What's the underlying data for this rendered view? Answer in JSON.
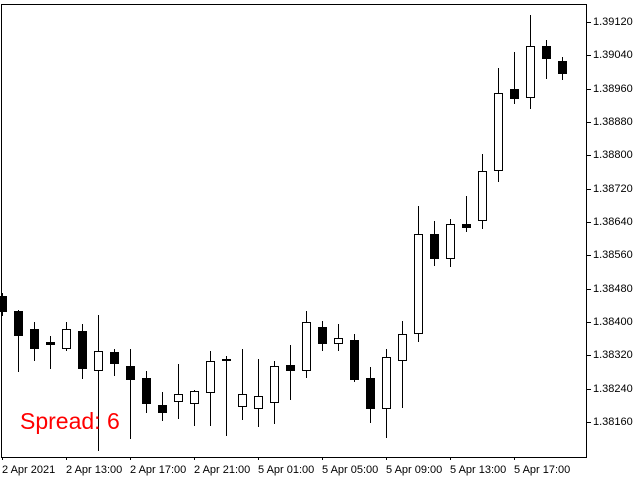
{
  "spread_label": {
    "text": "Spread: 6",
    "color": "#ff0000"
  },
  "colors": {
    "background": "#ffffff",
    "frame": "#000000",
    "bull_body": "#ffffff",
    "bear_body": "#000000",
    "outline": "#000000",
    "text": "#000000"
  },
  "chart_data": {
    "type": "candlestick",
    "title": "",
    "xlabel": "",
    "ylabel": "",
    "grid": false,
    "legend": null,
    "timeframe": "H1",
    "ylim": [
      1.38076,
      1.39163
    ],
    "y_axis": {
      "side": "right",
      "tick_labels": [
        "1.39120",
        "1.39040",
        "1.38960",
        "1.38880",
        "1.38800",
        "1.38720",
        "1.38640",
        "1.38560",
        "1.38480",
        "1.38400",
        "1.38320",
        "1.38240",
        "1.38160"
      ]
    },
    "x_axis": {
      "labels": [
        {
          "text": "2 Apr 2021",
          "candle_index": 0
        },
        {
          "text": "2 Apr 13:00",
          "candle_index": 4
        },
        {
          "text": "2 Apr 17:00",
          "candle_index": 8
        },
        {
          "text": "2 Apr 21:00",
          "candle_index": 12
        },
        {
          "text": "5 Apr 01:00",
          "candle_index": 16
        },
        {
          "text": "5 Apr 05:00",
          "candle_index": 20
        },
        {
          "text": "5 Apr 09:00",
          "candle_index": 24
        },
        {
          "text": "5 Apr 13:00",
          "candle_index": 28
        },
        {
          "text": "5 Apr 17:00",
          "candle_index": 32
        }
      ]
    },
    "candles": [
      {
        "t": "2 Apr 09:00",
        "o": 1.38462,
        "h": 1.3847,
        "l": 1.38415,
        "c": 1.38424
      },
      {
        "t": "2 Apr 10:00",
        "o": 1.38426,
        "h": 1.3843,
        "l": 1.3828,
        "c": 1.38366
      },
      {
        "t": "2 Apr 11:00",
        "o": 1.38383,
        "h": 1.38399,
        "l": 1.38306,
        "c": 1.38335
      },
      {
        "t": "2 Apr 12:00",
        "o": 1.38352,
        "h": 1.38366,
        "l": 1.38286,
        "c": 1.38344
      },
      {
        "t": "2 Apr 13:00",
        "o": 1.38336,
        "h": 1.384,
        "l": 1.3833,
        "c": 1.38384
      },
      {
        "t": "2 Apr 14:00",
        "o": 1.38378,
        "h": 1.38395,
        "l": 1.38262,
        "c": 1.38286
      },
      {
        "t": "2 Apr 15:00",
        "o": 1.38282,
        "h": 1.38418,
        "l": 1.3809,
        "c": 1.3833
      },
      {
        "t": "2 Apr 16:00",
        "o": 1.38327,
        "h": 1.38335,
        "l": 1.3827,
        "c": 1.38299
      },
      {
        "t": "2 Apr 17:00",
        "o": 1.38294,
        "h": 1.38335,
        "l": 1.3812,
        "c": 1.3826
      },
      {
        "t": "2 Apr 18:00",
        "o": 1.38266,
        "h": 1.38282,
        "l": 1.38182,
        "c": 1.38204
      },
      {
        "t": "2 Apr 19:00",
        "o": 1.38202,
        "h": 1.38231,
        "l": 1.38162,
        "c": 1.38182
      },
      {
        "t": "2 Apr 20:00",
        "o": 1.38207,
        "h": 1.38299,
        "l": 1.38166,
        "c": 1.38227
      },
      {
        "t": "2 Apr 21:00",
        "o": 1.38203,
        "h": 1.38237,
        "l": 1.3815,
        "c": 1.38235
      },
      {
        "t": "2 Apr 22:00",
        "o": 1.3823,
        "h": 1.3833,
        "l": 1.3815,
        "c": 1.38306
      },
      {
        "t": "2 Apr 23:00",
        "o": 1.38312,
        "h": 1.38318,
        "l": 1.38126,
        "c": 1.38305
      },
      {
        "t": "5 Apr 00:00",
        "o": 1.38195,
        "h": 1.38335,
        "l": 1.38164,
        "c": 1.38227
      },
      {
        "t": "5 Apr 01:00",
        "o": 1.38191,
        "h": 1.38311,
        "l": 1.38148,
        "c": 1.38223
      },
      {
        "t": "5 Apr 02:00",
        "o": 1.38206,
        "h": 1.38306,
        "l": 1.38155,
        "c": 1.38294
      },
      {
        "t": "5 Apr 03:00",
        "o": 1.38298,
        "h": 1.38346,
        "l": 1.38214,
        "c": 1.38282
      },
      {
        "t": "5 Apr 04:00",
        "o": 1.38282,
        "h": 1.38427,
        "l": 1.38266,
        "c": 1.38399
      },
      {
        "t": "5 Apr 05:00",
        "o": 1.38387,
        "h": 1.38402,
        "l": 1.3833,
        "c": 1.38346
      },
      {
        "t": "5 Apr 06:00",
        "o": 1.38346,
        "h": 1.38395,
        "l": 1.3833,
        "c": 1.38362
      },
      {
        "t": "5 Apr 07:00",
        "o": 1.38358,
        "h": 1.38371,
        "l": 1.38255,
        "c": 1.38262
      },
      {
        "t": "5 Apr 08:00",
        "o": 1.38266,
        "h": 1.38291,
        "l": 1.38158,
        "c": 1.3819
      },
      {
        "t": "5 Apr 09:00",
        "o": 1.3819,
        "h": 1.38335,
        "l": 1.38122,
        "c": 1.38315
      },
      {
        "t": "5 Apr 10:00",
        "o": 1.38306,
        "h": 1.38402,
        "l": 1.38194,
        "c": 1.38371
      },
      {
        "t": "5 Apr 11:00",
        "o": 1.38371,
        "h": 1.38679,
        "l": 1.38351,
        "c": 1.38611
      },
      {
        "t": "5 Apr 12:00",
        "o": 1.38611,
        "h": 1.38643,
        "l": 1.38535,
        "c": 1.38551
      },
      {
        "t": "5 Apr 13:00",
        "o": 1.38551,
        "h": 1.38647,
        "l": 1.38531,
        "c": 1.38635
      },
      {
        "t": "5 Apr 14:00",
        "o": 1.38636,
        "h": 1.38703,
        "l": 1.38615,
        "c": 1.38626
      },
      {
        "t": "5 Apr 15:00",
        "o": 1.38643,
        "h": 1.38803,
        "l": 1.38623,
        "c": 1.38763
      },
      {
        "t": "5 Apr 16:00",
        "o": 1.38763,
        "h": 1.3901,
        "l": 1.38735,
        "c": 1.3895
      },
      {
        "t": "5 Apr 17:00",
        "o": 1.38958,
        "h": 1.39048,
        "l": 1.38924,
        "c": 1.38936
      },
      {
        "t": "5 Apr 18:00",
        "o": 1.38938,
        "h": 1.39136,
        "l": 1.3891,
        "c": 1.39062
      },
      {
        "t": "5 Apr 19:00",
        "o": 1.39062,
        "h": 1.39076,
        "l": 1.38984,
        "c": 1.3903
      },
      {
        "t": "5 Apr 20:00",
        "o": 1.39026,
        "h": 1.39037,
        "l": 1.3898,
        "c": 1.38994
      }
    ]
  }
}
